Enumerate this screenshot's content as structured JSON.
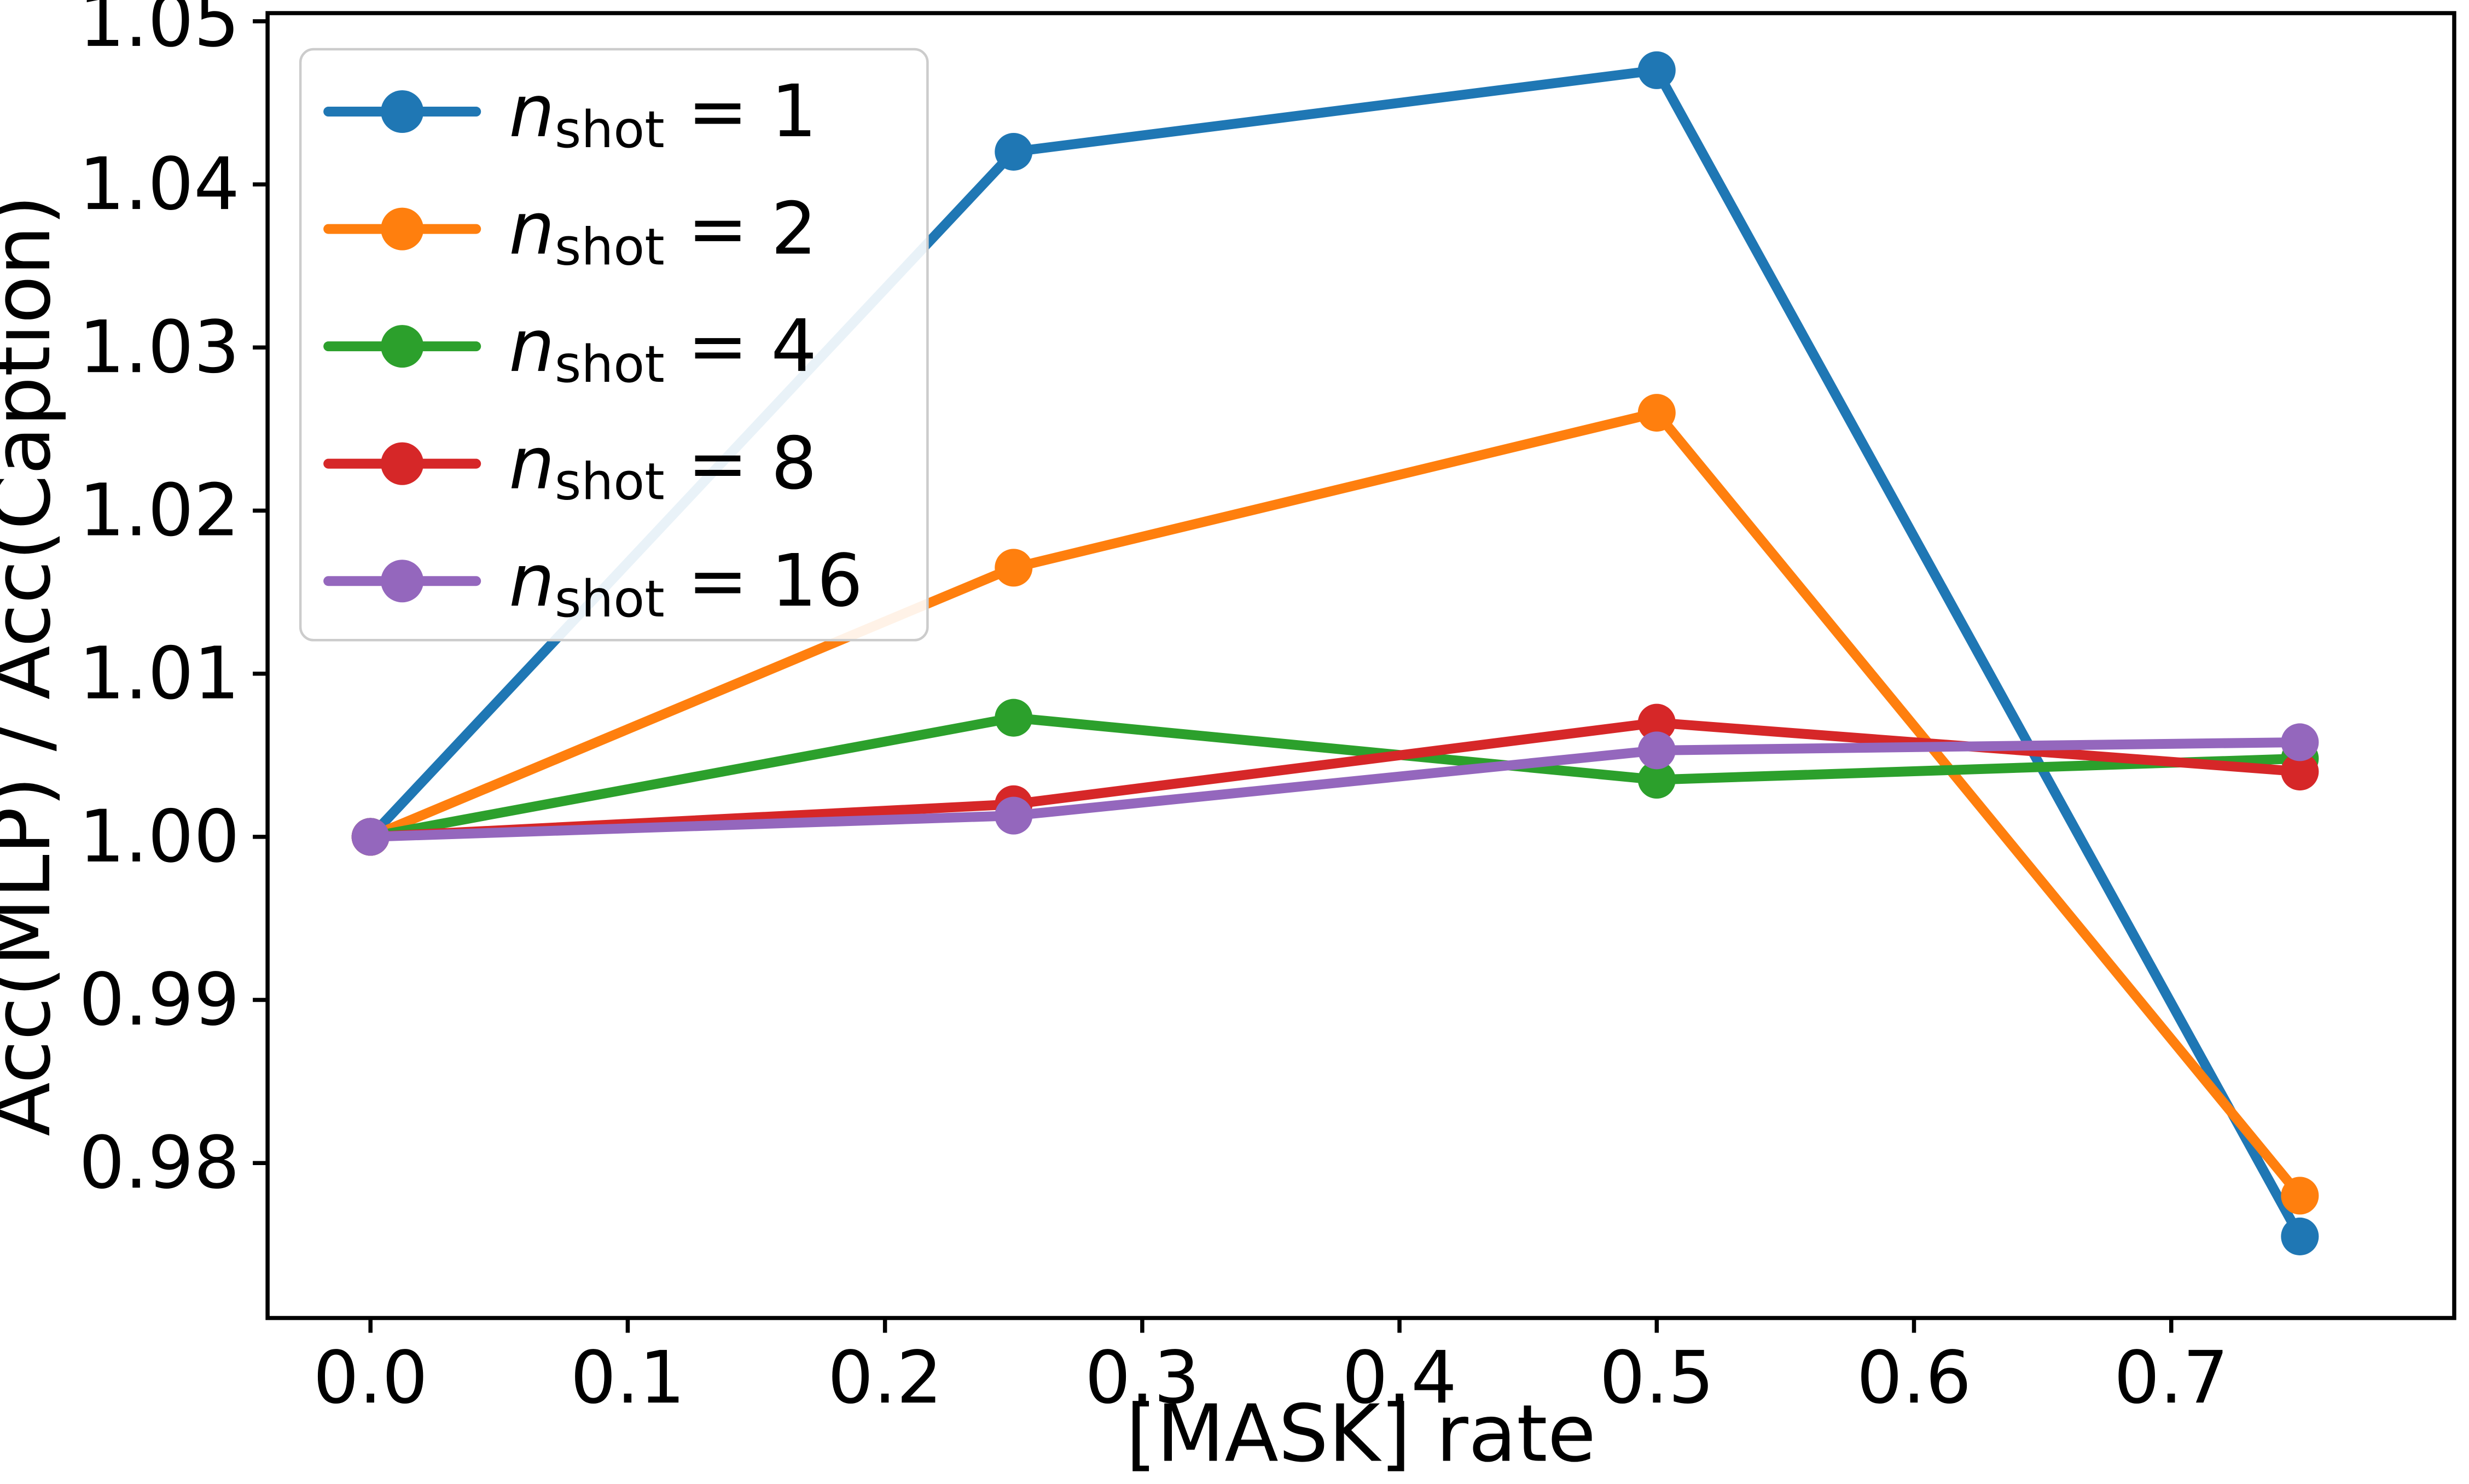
{
  "chart_data": {
    "type": "line",
    "title": "",
    "xlabel": "[MASK] rate",
    "ylabel": "Acc(MLP) / Acc(Caption)",
    "x": [
      0.0,
      0.25,
      0.5,
      0.75
    ],
    "series": [
      {
        "name": "n_shot = 1",
        "color": "#1f77b4",
        "values": [
          1.0,
          1.042,
          1.047,
          0.9755
        ],
        "legend": {
          "var": "n",
          "sub": "shot",
          "eq": " = 1"
        }
      },
      {
        "name": "n_shot = 2",
        "color": "#ff7f0e",
        "values": [
          1.0,
          1.0165,
          1.026,
          0.978
        ],
        "legend": {
          "var": "n",
          "sub": "shot",
          "eq": " = 2"
        }
      },
      {
        "name": "n_shot = 4",
        "color": "#2ca02c",
        "values": [
          1.0,
          1.0073,
          1.0035,
          1.0048
        ],
        "legend": {
          "var": "n",
          "sub": "shot",
          "eq": " = 4"
        }
      },
      {
        "name": "n_shot = 8",
        "color": "#d62728",
        "values": [
          1.0,
          1.002,
          1.007,
          1.004
        ],
        "legend": {
          "var": "n",
          "sub": "shot",
          "eq": " = 8"
        }
      },
      {
        "name": "n_shot = 16",
        "color": "#9467bd",
        "values": [
          1.0,
          1.0013,
          1.0053,
          1.0058
        ],
        "legend": {
          "var": "n",
          "sub": "shot",
          "eq": " = 16"
        }
      }
    ],
    "xlim": [
      -0.04,
      0.81
    ],
    "ylim": [
      0.9705,
      1.0505
    ],
    "xticks": [
      0.0,
      0.1,
      0.2,
      0.3,
      0.4,
      0.5,
      0.6,
      0.7
    ],
    "xtick_labels": [
      "0.0",
      "0.1",
      "0.2",
      "0.3",
      "0.4",
      "0.5",
      "0.6",
      "0.7"
    ],
    "yticks": [
      0.98,
      0.99,
      1.0,
      1.01,
      1.02,
      1.03,
      1.04,
      1.05
    ],
    "ytick_labels": [
      "0.98",
      "0.99",
      "1.00",
      "1.01",
      "1.02",
      "1.03",
      "1.04",
      "1.05"
    ],
    "legend_position": "upper left",
    "grid": false,
    "colors": {
      "background": "#ffffff",
      "spine": "#000000",
      "text": "#000000",
      "legend_border": "#cccccc",
      "legend_fill": "#ffffff"
    }
  }
}
